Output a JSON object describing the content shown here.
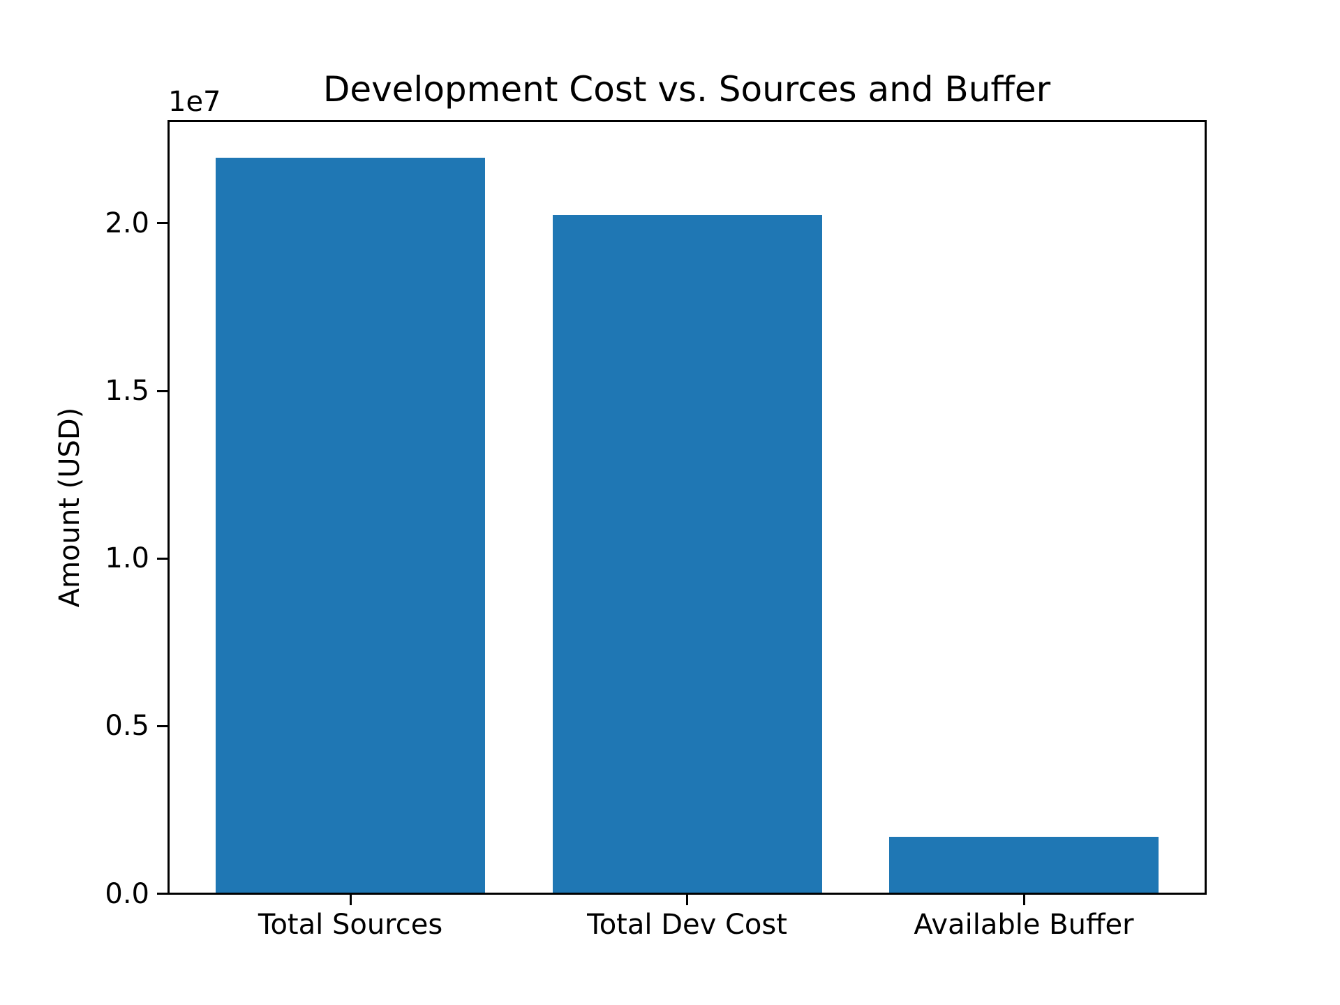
{
  "chart_data": {
    "type": "bar",
    "title": "Development Cost vs. Sources and Buffer",
    "ylabel": "Amount (USD)",
    "xlabel": "",
    "y_offset_label": "1e7",
    "categories": [
      "Total Sources",
      "Total Dev Cost",
      "Available Buffer"
    ],
    "values": [
      21950000,
      20250000,
      1700000
    ],
    "ylim": [
      0,
      23047500
    ],
    "xlim": [
      -0.54,
      2.54
    ],
    "bar_width_ratio": 0.8,
    "bar_color": "#1f77b4",
    "axis_color": "#000000",
    "background_color": "#ffffff",
    "grid": false,
    "legend": null,
    "yticks": {
      "values": [
        0,
        5000000,
        10000000,
        15000000,
        20000000
      ],
      "labels": [
        "0.0",
        "0.5",
        "1.0",
        "1.5",
        "2.0"
      ]
    }
  }
}
